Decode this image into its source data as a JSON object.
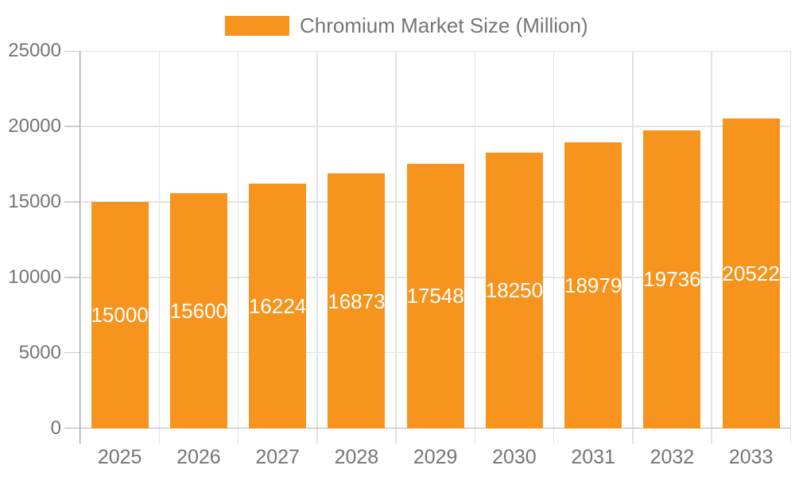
{
  "legend": {
    "label": "Chromium Market Size (Million)"
  },
  "colors": {
    "bar": "#F7941E",
    "grid": "#E3E3E3",
    "axis_line": "#9E9E9E",
    "baseline": "#B3B3B3",
    "tick": "#CCCCCC",
    "axis_text": "#757575",
    "value_text": "#FFFFFF",
    "background": "#FFFFFF"
  },
  "chart_data": {
    "type": "bar",
    "title": "Chromium Market Size (Million)",
    "categories": [
      "2025",
      "2026",
      "2027",
      "2028",
      "2029",
      "2030",
      "2031",
      "2032",
      "2033"
    ],
    "series": [
      {
        "name": "Chromium Market Size (Million)",
        "values": [
          15000,
          15600,
          16224,
          16873,
          17548,
          18250,
          18979,
          19736,
          20522
        ]
      }
    ],
    "value_labels": [
      "15000",
      "15600",
      "16224",
      "16873",
      "17548",
      "18250",
      "18979",
      "19736",
      "20522"
    ],
    "value_label_position": "inside-center",
    "xlabel": "",
    "ylabel": "",
    "ylim": [
      0,
      25000
    ],
    "yticks": [
      0,
      5000,
      10000,
      15000,
      20000,
      25000
    ],
    "ytick_labels": [
      "0",
      "5000",
      "10000",
      "15000",
      "20000",
      "25000"
    ],
    "grid": true,
    "legend_position": "top-center"
  }
}
